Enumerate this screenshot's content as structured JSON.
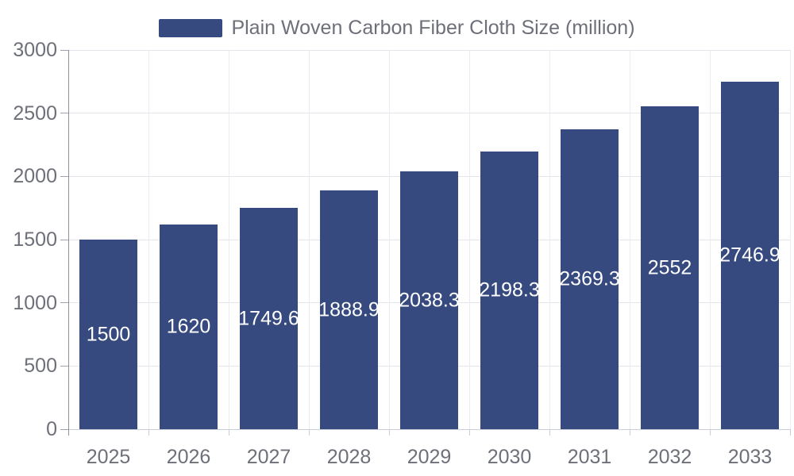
{
  "legend": {
    "label": "Plain Woven Carbon Fiber Cloth Size (million)"
  },
  "chart_data": {
    "type": "bar",
    "title": "Plain Woven Carbon Fiber Cloth Size (million)",
    "categories": [
      "2025",
      "2026",
      "2027",
      "2028",
      "2029",
      "2030",
      "2031",
      "2032",
      "2033"
    ],
    "series": [
      {
        "name": "Plain Woven Carbon Fiber Cloth Size (million)",
        "values": [
          1500,
          1620,
          1749.6,
          1888.9,
          2038.3,
          2198.3,
          2369.3,
          2552,
          2746.9
        ],
        "value_labels": [
          "1500",
          "1620",
          "1749.6",
          "1888.9",
          "2038.3",
          "2198.3",
          "2369.3",
          "2552",
          "2746.9"
        ]
      }
    ],
    "xlabel": "",
    "ylabel": "",
    "ylim": [
      0,
      3000
    ],
    "yticks": [
      0,
      500,
      1000,
      1500,
      2000,
      2500,
      3000
    ],
    "ytick_labels": [
      "0",
      "500",
      "1000",
      "1500",
      "2000",
      "2500",
      "3000"
    ],
    "grid": true,
    "legend_position": "top-center",
    "bar_label_position": "inside-center",
    "colors": {
      "bar": "#364a7f",
      "bar_label": "#ffffff",
      "axis_text": "#6e7079",
      "legend_text": "#6e7079",
      "grid_line": "#e4e5ea",
      "grid_line_vertical": "#ebecf1",
      "x_axis_line": "#c9cdd9",
      "y_axis_line": "#8d9199",
      "tick": "#9da2ac",
      "background": "#ffffff"
    }
  }
}
